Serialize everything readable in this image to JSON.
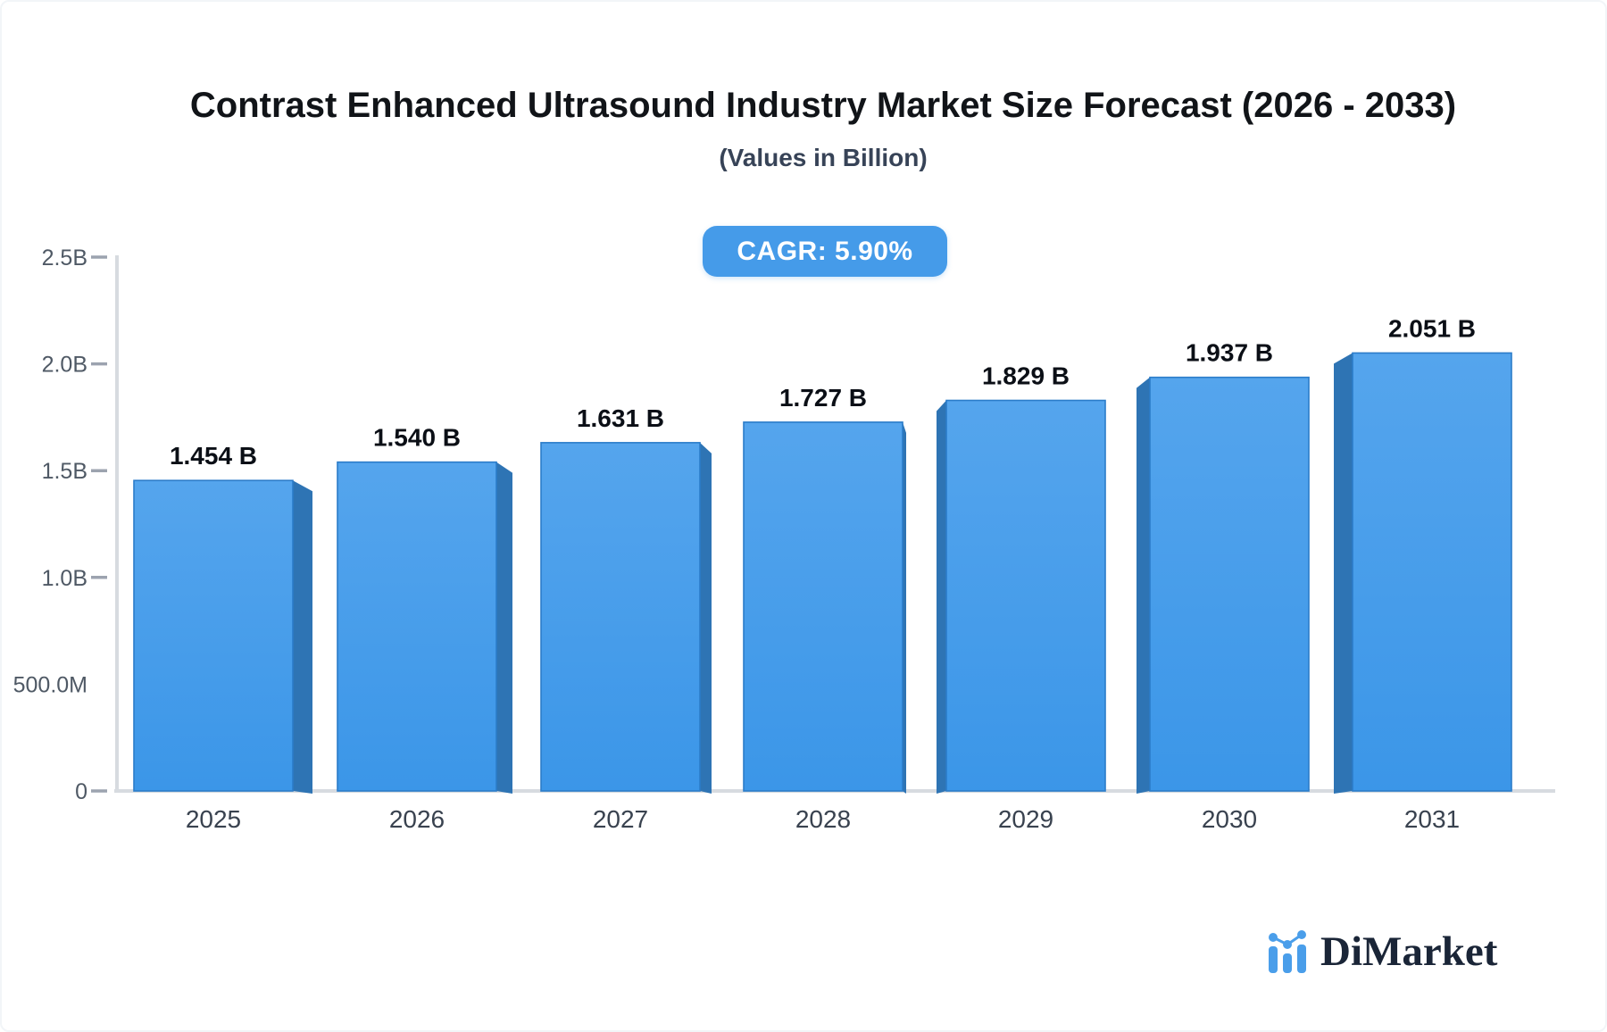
{
  "header": {
    "title": "Contrast Enhanced Ultrasound Industry Market Size Forecast (2026 - 2033)",
    "subtitle": "(Values in Billion)",
    "cagr_label": "CAGR: 5.90%"
  },
  "brand": {
    "name": "DiMarket",
    "icon": "mini-bar-line-chart-icon"
  },
  "colors": {
    "bar_face_top": "#55a5ed",
    "bar_face_bottom": "#3b96e8",
    "bar_stroke": "#2b7cc9",
    "bar_side": "#2e74b4",
    "badge_bg": "#459be9",
    "axis_line": "#d7dbe0",
    "tick_dash": "#9ca3af",
    "ytick_label": "#4f5965",
    "year_label": "#39424f",
    "value_label": "#0b0f16",
    "brand_icon": "#4a9eea",
    "brand_text": "#1a2537"
  },
  "chart_data": {
    "type": "bar",
    "title": "Contrast Enhanced Ultrasound Industry Market Size Forecast (2026 - 2033)",
    "subtitle": "(Values in Billion)",
    "cagr": "5.90%",
    "unit": "Billion",
    "categories": [
      "2025",
      "2026",
      "2027",
      "2028",
      "2029",
      "2030",
      "2031"
    ],
    "values": [
      1.454,
      1.54,
      1.631,
      1.727,
      1.829,
      1.937,
      2.051
    ],
    "value_labels": [
      "1.454 B",
      "1.540 B",
      "1.631 B",
      "1.727 B",
      "1.829 B",
      "1.937 B",
      "2.051 B"
    ],
    "ylim": [
      0,
      2.5
    ],
    "yticks": [
      {
        "label": "0",
        "value": 0,
        "dash": true
      },
      {
        "label": "500.0M",
        "value": 0.5,
        "dash": false
      },
      {
        "label": "1.0B",
        "value": 1.0,
        "dash": true
      },
      {
        "label": "1.5B",
        "value": 1.5,
        "dash": true
      },
      {
        "label": "2.0B",
        "value": 2.0,
        "dash": true
      },
      {
        "label": "2.5B",
        "value": 2.5,
        "dash": true
      }
    ],
    "grid": false,
    "legend": "none",
    "style": "3d-perspective-bars"
  }
}
